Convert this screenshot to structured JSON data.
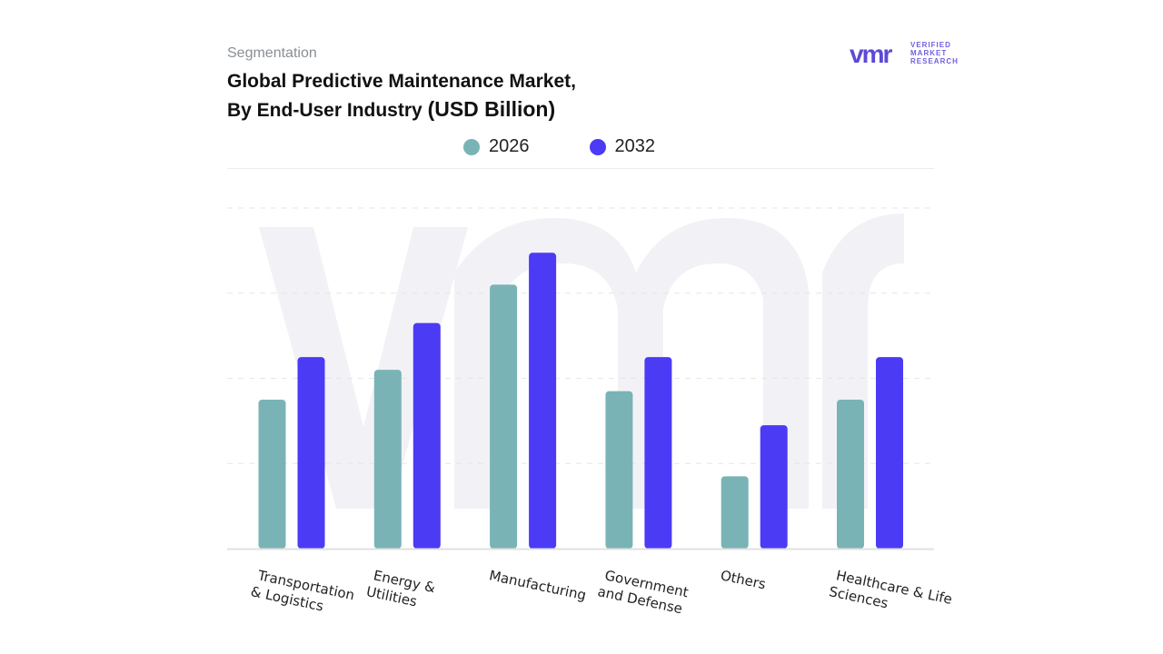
{
  "header": {
    "eyebrow": "Segmentation",
    "title_line1": "Global Predictive Maintenance Market,",
    "title_line2": "By End-User Industry",
    "title_unit": "(USD Billion)"
  },
  "logo": {
    "mark": "vmr",
    "line1": "VERIFIED",
    "line2": "MARKET",
    "line3": "RESEARCH"
  },
  "colors": {
    "series_2026": "#7ab3b6",
    "series_2032": "#4b3bf5",
    "grid": "#e6e6e6",
    "axis": "#e0e0e0",
    "watermark": "#f2f2f6"
  },
  "chart_data": {
    "type": "bar",
    "title": "Global Predictive Maintenance Market, By End-User Industry (USD Billion)",
    "xlabel": "",
    "ylabel": "",
    "categories": [
      [
        "Transportation",
        "& Logistics"
      ],
      [
        "Energy &",
        "Utilities"
      ],
      [
        "Manufacturing"
      ],
      [
        "Government",
        "and Defense"
      ],
      [
        "Others"
      ],
      [
        "Healthcare & Life",
        "Sciences"
      ]
    ],
    "series": [
      {
        "name": "2026",
        "values": [
          3.5,
          4.2,
          6.2,
          3.7,
          1.7,
          3.5
        ]
      },
      {
        "name": "2032",
        "values": [
          4.5,
          5.3,
          6.95,
          4.5,
          2.9,
          4.5
        ]
      }
    ],
    "ylim": [
      0,
      8
    ],
    "grid": true,
    "legend": "top-center",
    "x_label_rotation_deg": 12
  }
}
